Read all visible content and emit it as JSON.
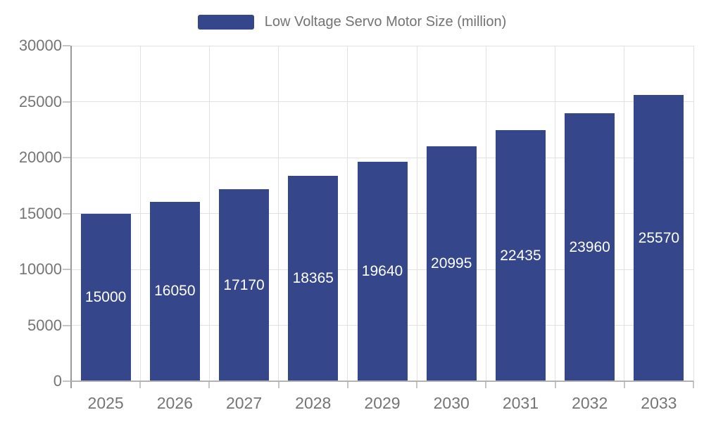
{
  "legend": {
    "label": "Low Voltage Servo Motor Size (million)",
    "swatch_color": "#35478a",
    "text_color": "#737373"
  },
  "chart_data": {
    "type": "bar",
    "title": "Low Voltage Servo Motor Size (million)",
    "categories": [
      "2025",
      "2026",
      "2027",
      "2028",
      "2029",
      "2030",
      "2031",
      "2032",
      "2033"
    ],
    "series": [
      {
        "name": "Low Voltage Servo Motor Size (million)",
        "values": [
          15000,
          16050,
          17170,
          18365,
          19640,
          20995,
          22435,
          23960,
          25570
        ]
      }
    ],
    "data_labels_shown": true,
    "xlabel": "",
    "ylabel": "",
    "ylim": [
      0,
      30000
    ],
    "yticks": [
      0,
      5000,
      10000,
      15000,
      20000,
      25000,
      30000
    ],
    "grid": true,
    "legend_position": "top-center",
    "style": {
      "bar_color": "#35478a",
      "data_label_color": "#ffffff",
      "grid_color": "#e2e2e2",
      "y_axis_color": "#9b9b9b",
      "x_axis_color": "#b3b3b3",
      "tick_color": "#c5c5c5",
      "tick_label_color": "#757575",
      "background": "#ffffff"
    }
  }
}
